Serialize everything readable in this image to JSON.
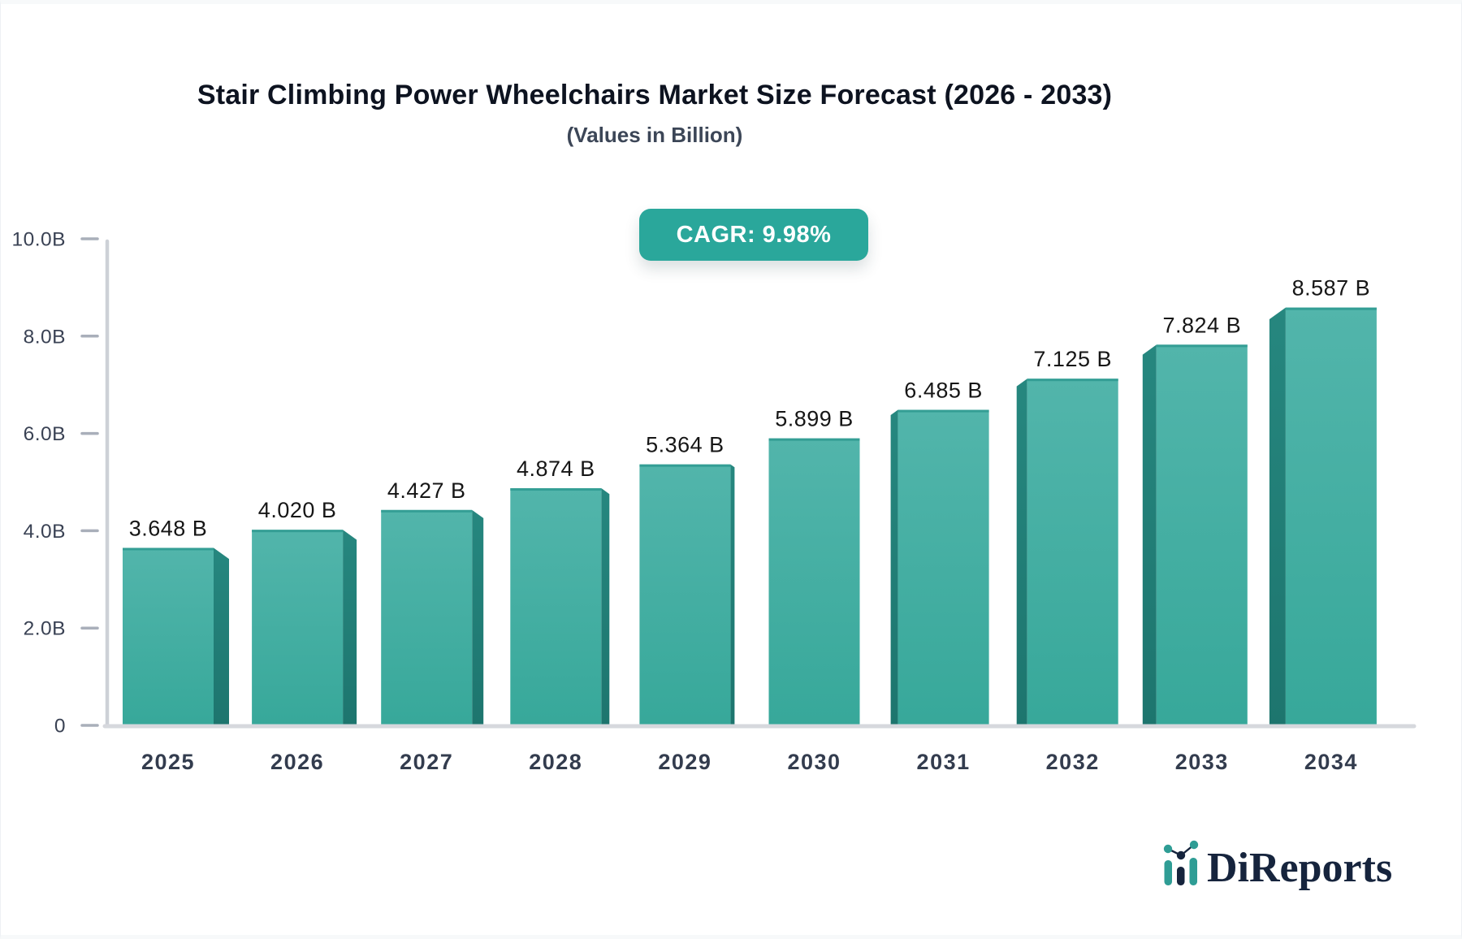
{
  "header": {
    "title": "Stair Climbing Power Wheelchairs Market Size Forecast (2026 - 2033)",
    "subtitle": "(Values in Billion)"
  },
  "cagr_badge": {
    "label": "CAGR: 9.98%",
    "color": "#2aa79b"
  },
  "chart_data": {
    "type": "bar",
    "title": "Stair Climbing Power Wheelchairs Market Size Forecast (2026 - 2033)",
    "subtitle": "(Values in Billion)",
    "categories": [
      "2025",
      "2026",
      "2027",
      "2028",
      "2029",
      "2030",
      "2031",
      "2032",
      "2033",
      "2034"
    ],
    "values": [
      3.648,
      4.02,
      4.427,
      4.874,
      5.364,
      5.899,
      6.485,
      7.125,
      7.824,
      8.587
    ],
    "value_labels": [
      "3.648 B",
      "4.020 B",
      "4.427 B",
      "4.874 B",
      "5.364 B",
      "5.899 B",
      "6.485 B",
      "7.125 B",
      "7.824 B",
      "8.587 B"
    ],
    "xlabel": "",
    "ylabel": "",
    "ylim": [
      0,
      10
    ],
    "ytick_values": [
      10,
      8,
      6,
      4,
      2,
      0
    ],
    "ytick_labels": [
      "10.0B",
      "8.0B",
      "6.0B",
      "4.0B",
      "2.0B",
      "0"
    ],
    "grid": false,
    "legend": false,
    "style": "3d-extruded-bars",
    "colors": {
      "bar_face_top": "#52b5ab",
      "bar_face_bottom": "#37a89a",
      "bar_top_edge": "#2f9a90",
      "bar_side": "#217e77",
      "axis_line": "#cdd1d7",
      "baseline": "#d6d8dd",
      "tick_dash": "#a9afba",
      "ytick_text": "#3a4254",
      "xtick_text": "#333c4e",
      "value_text": "#161616"
    }
  },
  "branding": {
    "name": "DiReports",
    "icon": "bar-chart-logo-icon",
    "teal": "#2f9d95",
    "navy": "#16243d"
  }
}
